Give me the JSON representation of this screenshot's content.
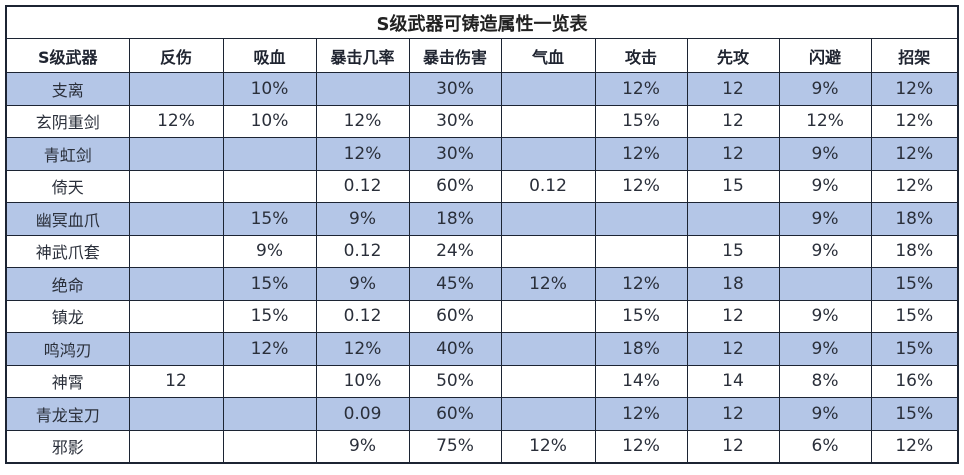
{
  "title": "S级武器可铸造属性一览表",
  "columns": [
    "S级武器",
    "反伤",
    "吸血",
    "暴击几率",
    "暴击伤害",
    "气血",
    "攻击",
    "先攻",
    "闪避",
    "招架"
  ],
  "rows": [
    {
      "cells": [
        "支离",
        "",
        "10%",
        "",
        "30%",
        "",
        "12%",
        "12",
        "9%",
        "12%"
      ],
      "shaded": true
    },
    {
      "cells": [
        "玄阴重剑",
        "12%",
        "10%",
        "12%",
        "30%",
        "",
        "15%",
        "12",
        "12%",
        "12%"
      ],
      "shaded": false
    },
    {
      "cells": [
        "青虹剑",
        "",
        "",
        "12%",
        "30%",
        "",
        "12%",
        "12",
        "9%",
        "12%"
      ],
      "shaded": true
    },
    {
      "cells": [
        "倚天",
        "",
        "",
        "0.12",
        "60%",
        "0.12",
        "12%",
        "15",
        "9%",
        "12%"
      ],
      "shaded": false
    },
    {
      "cells": [
        "幽冥血爪",
        "",
        "15%",
        "9%",
        "18%",
        "",
        "",
        "",
        "9%",
        "18%"
      ],
      "shaded": true
    },
    {
      "cells": [
        "神武爪套",
        "",
        "9%",
        "0.12",
        "24%",
        "",
        "",
        "15",
        "9%",
        "18%"
      ],
      "shaded": false
    },
    {
      "cells": [
        "绝命",
        "",
        "15%",
        "9%",
        "45%",
        "12%",
        "12%",
        "18",
        "",
        "15%"
      ],
      "shaded": true
    },
    {
      "cells": [
        "镇龙",
        "",
        "15%",
        "0.12",
        "60%",
        "",
        "15%",
        "12",
        "9%",
        "15%"
      ],
      "shaded": false
    },
    {
      "cells": [
        "鸣鸿刃",
        "",
        "12%",
        "12%",
        "40%",
        "",
        "18%",
        "12",
        "9%",
        "15%"
      ],
      "shaded": true
    },
    {
      "cells": [
        "神霄",
        "12",
        "",
        "10%",
        "50%",
        "",
        "14%",
        "14",
        "8%",
        "16%"
      ],
      "shaded": false
    },
    {
      "cells": [
        "青龙宝刀",
        "",
        "",
        "0.09",
        "60%",
        "",
        "12%",
        "12",
        "9%",
        "15%"
      ],
      "shaded": true
    },
    {
      "cells": [
        "邪影",
        "",
        "",
        "9%",
        "75%",
        "12%",
        "12%",
        "12",
        "6%",
        "12%"
      ],
      "shaded": false
    }
  ],
  "colors": {
    "shaded_row": "#b4c6e7",
    "plain_row": "#ffffff",
    "border": "#1c2433"
  }
}
